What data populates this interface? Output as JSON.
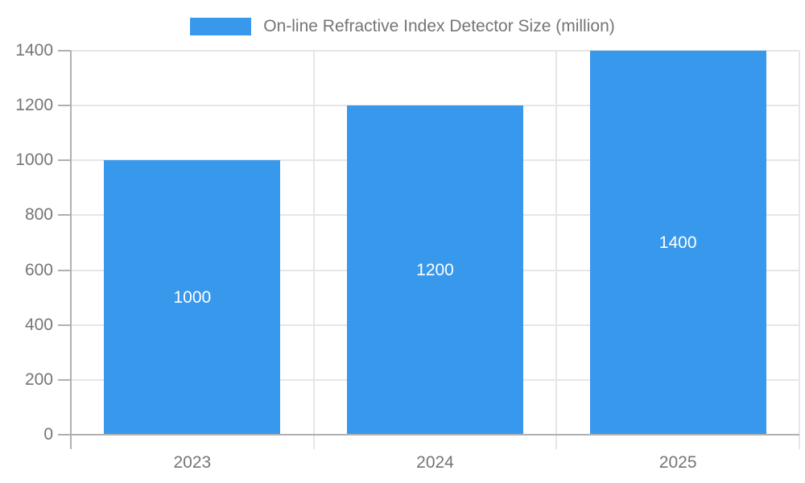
{
  "legend": {
    "label": "On-line Refractive Index Detector Size (million)"
  },
  "colors": {
    "bar": "#3898EC",
    "bar_label_text": "#ffffff",
    "axis_line": "#b0b0b0",
    "tick_mark": "#b0b0b0",
    "gridline": "#e6e6e6",
    "axis_text": "#757575",
    "background": "#ffffff"
  },
  "chart_data": {
    "type": "bar",
    "title": "",
    "categories": [
      "2023",
      "2024",
      "2025"
    ],
    "series": [
      {
        "name": "On-line Refractive Index Detector Size (million)",
        "values": [
          1000,
          1200,
          1400
        ]
      }
    ],
    "bar_labels": [
      "1000",
      "1200",
      "1400"
    ],
    "xlabel": "",
    "ylabel": "",
    "ylim": [
      0,
      1400
    ],
    "yticks": [
      0,
      200,
      400,
      600,
      800,
      1000,
      1200,
      1400
    ],
    "grid": true,
    "legend_position": "top"
  }
}
